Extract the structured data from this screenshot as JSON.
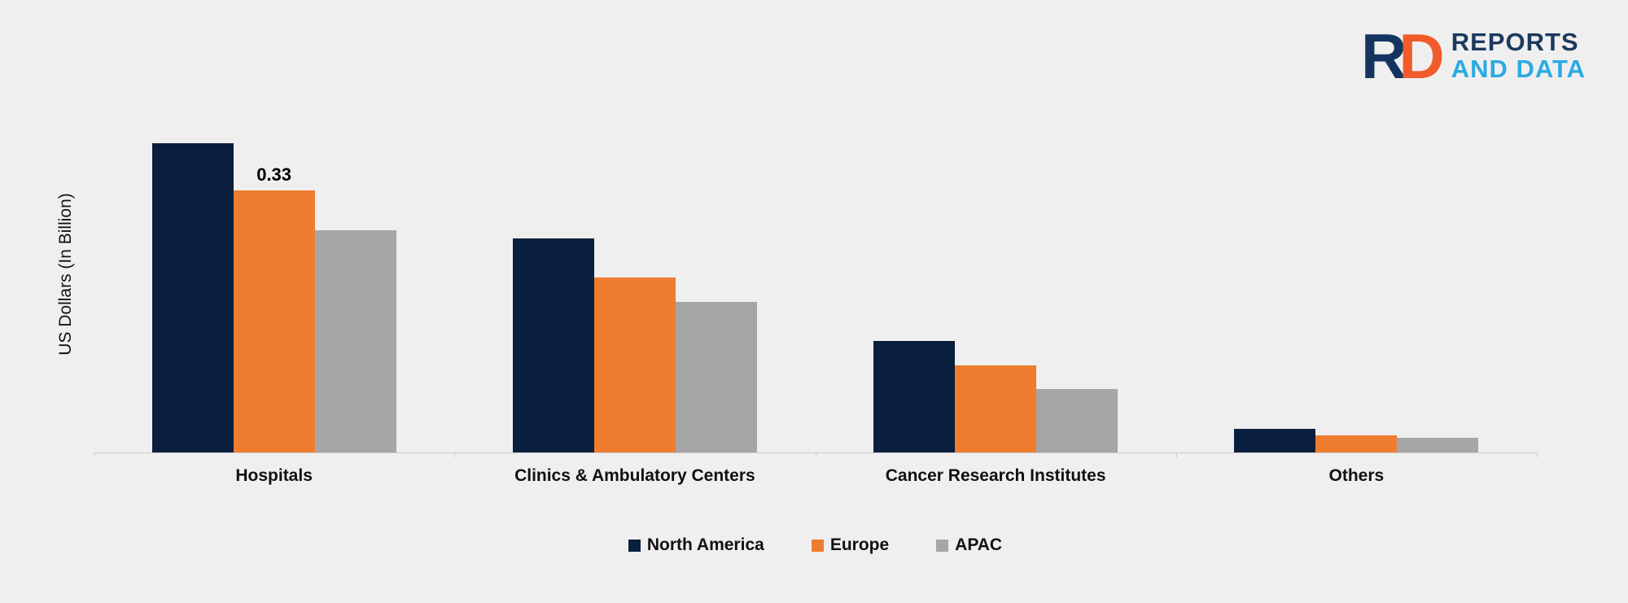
{
  "logo": {
    "mark_r": "R",
    "mark_d": "D",
    "line1": "REPORTS",
    "line2": "AND DATA",
    "colors": {
      "navy": "#14355f",
      "orange": "#f15b2a",
      "blue": "#2aabe2"
    }
  },
  "colors": {
    "background": "#f0efef",
    "axis": "#cccccc",
    "text": "#111111"
  },
  "chart_data": {
    "type": "bar",
    "title": "",
    "xlabel": "",
    "ylabel": "US Dollars  (In Billion)",
    "ylim": [
      0,
      0.45
    ],
    "grid": false,
    "legend_position": "bottom",
    "categories": [
      "Hospitals",
      "Clinics & Ambulatory Centers",
      "Cancer Research Institutes",
      "Others"
    ],
    "series": [
      {
        "name": "North America",
        "color": "#0a1f3d",
        "values": [
          0.39,
          0.27,
          0.14,
          0.03
        ]
      },
      {
        "name": "Europe",
        "color": "#ee7d30",
        "values": [
          0.33,
          0.22,
          0.11,
          0.022
        ]
      },
      {
        "name": "APAC",
        "color": "#a6a6a6",
        "values": [
          0.28,
          0.19,
          0.08,
          0.018
        ]
      }
    ],
    "data_labels": [
      {
        "series": "Europe",
        "category": "Hospitals",
        "text": "0.33"
      }
    ]
  }
}
